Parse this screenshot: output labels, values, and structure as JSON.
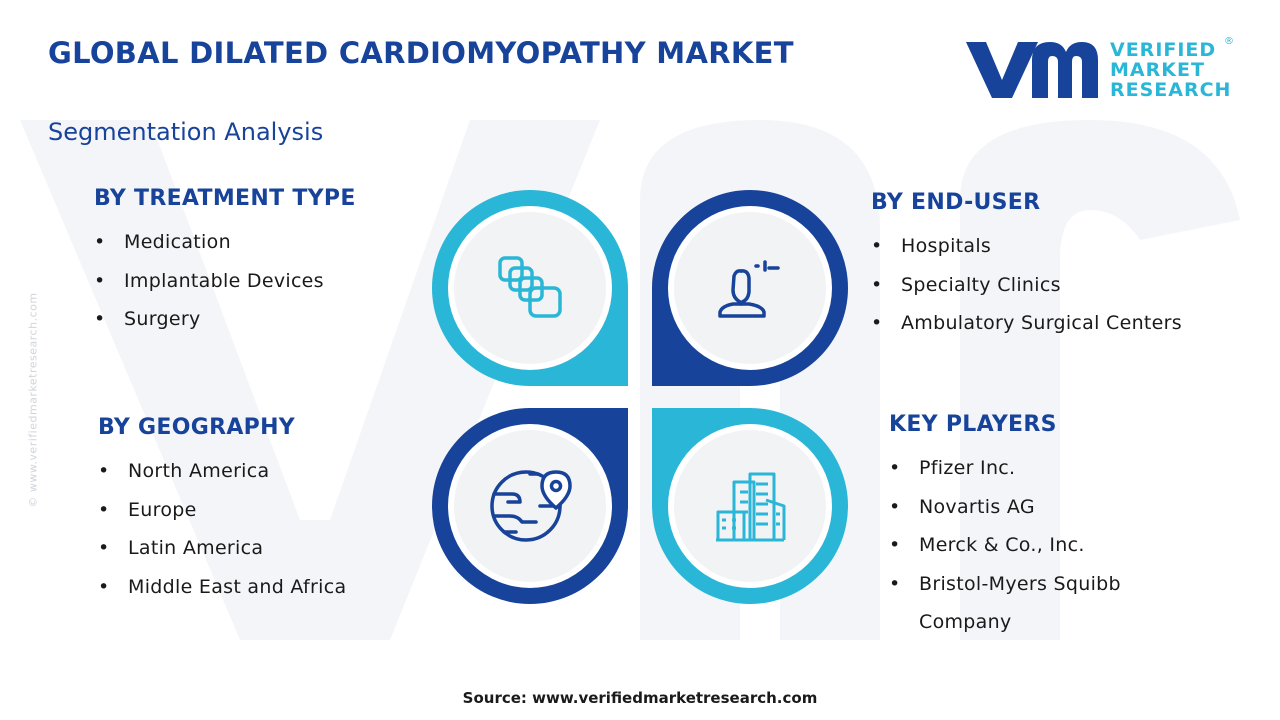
{
  "header": {
    "title": "GLOBAL DILATED CARDIOMYOPATHY MARKET",
    "subtitle": "Segmentation Analysis"
  },
  "logo": {
    "line1": "VERIFIED",
    "line2": "MARKET",
    "line3": "RESEARCH",
    "registered": "®"
  },
  "side_watermark": "© www.verifiedmarketresearch.com",
  "segments": {
    "treatment": {
      "title": "BY TREATMENT TYPE",
      "items": [
        "Medication",
        "Implantable Devices",
        "Surgery"
      ]
    },
    "end_user": {
      "title": "BY END-USER",
      "items": [
        "Hospitals",
        "Specialty Clinics",
        "Ambulatory Surgical Centers"
      ]
    },
    "geography": {
      "title": "BY GEOGRAPHY",
      "items": [
        "North America",
        "Europe",
        "Latin America",
        "Middle East and Africa"
      ]
    },
    "key_players": {
      "title": "KEY PLAYERS",
      "items": [
        "Pfizer Inc.",
        "Novartis AG",
        "Merck & Co., Inc.",
        "Bristol-Myers Squibb",
        "Company"
      ]
    }
  },
  "icons": {
    "treatment": "capsules-icon",
    "end_user": "user-icon",
    "geography": "globe-location-icon",
    "key_players": "buildings-icon"
  },
  "colors": {
    "navy": "#17439a",
    "cyan": "#2ab6d6",
    "circle": "#f2f3f5"
  },
  "footer": {
    "source": "Source: www.verifiedmarketresearch.com"
  }
}
